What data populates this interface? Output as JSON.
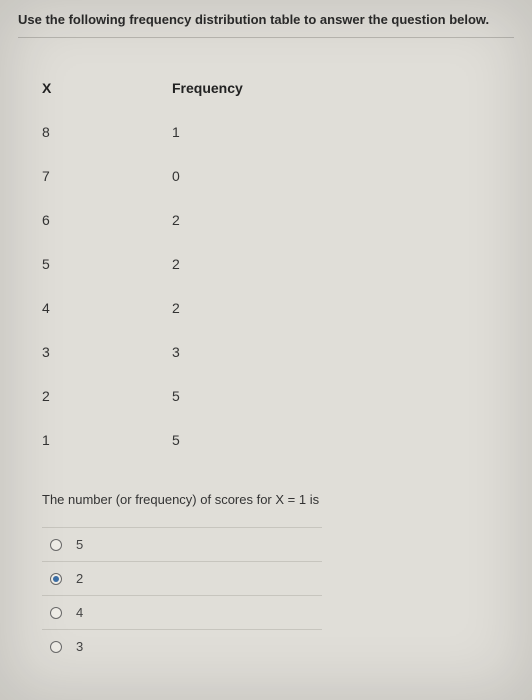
{
  "instruction": "Use the following frequency distribution table to answer the question below.",
  "table": {
    "headers": {
      "x": "X",
      "f": "Frequency"
    },
    "rows": [
      {
        "x": "8",
        "f": "1"
      },
      {
        "x": "7",
        "f": "0"
      },
      {
        "x": "6",
        "f": "2"
      },
      {
        "x": "5",
        "f": "2"
      },
      {
        "x": "4",
        "f": "2"
      },
      {
        "x": "3",
        "f": "3"
      },
      {
        "x": "2",
        "f": "5"
      },
      {
        "x": "1",
        "f": "5"
      }
    ]
  },
  "question": "The number (or frequency) of scores for X = 1 is",
  "options": [
    {
      "label": "5",
      "selected": false
    },
    {
      "label": "2",
      "selected": true
    },
    {
      "label": "4",
      "selected": false
    },
    {
      "label": "3",
      "selected": false
    }
  ],
  "colors": {
    "background": "#e0ded8",
    "text": "#3a3a3a",
    "border": "#c7c5be",
    "radio_selected": "#3b6ea5"
  }
}
